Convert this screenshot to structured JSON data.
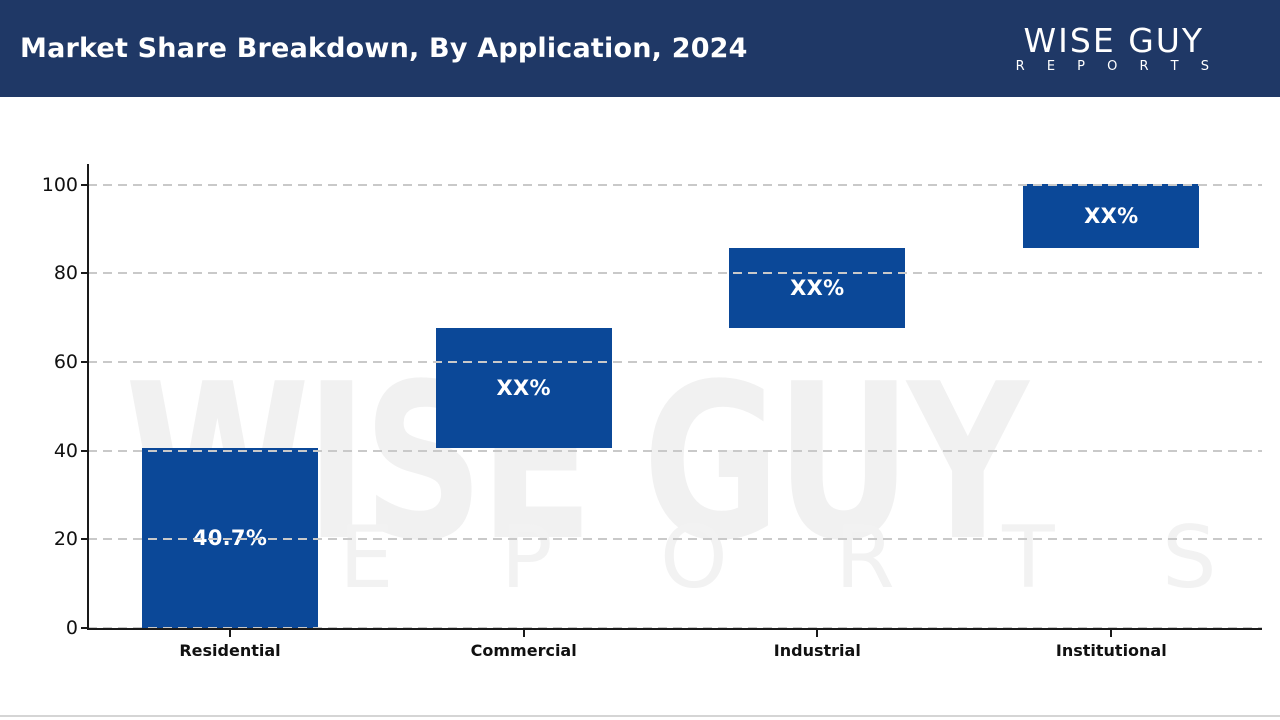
{
  "header": {
    "title": "Market Share Breakdown, By Application, 2024",
    "background_color": "#1f3866",
    "brand": {
      "line1": "WISE GUY",
      "line2": "R E P O R T S"
    }
  },
  "watermark": {
    "line1": "WISE GUY",
    "line2": "R E P O R T S"
  },
  "chart_data": {
    "type": "bar",
    "subtype": "waterfall",
    "title": "Market Share Breakdown, By Application, 2024",
    "categories": [
      "Residential",
      "Commercial",
      "Industrial",
      "Institutional"
    ],
    "segments": [
      {
        "category": "Residential",
        "start": 0,
        "end": 40.7,
        "value_label": "40.7%"
      },
      {
        "category": "Commercial",
        "start": 40.7,
        "end": 67.6,
        "value_label": "XX%"
      },
      {
        "category": "Industrial",
        "start": 67.6,
        "end": 85.8,
        "value_label": "XX%"
      },
      {
        "category": "Institutional",
        "start": 85.8,
        "end": 100.1,
        "value_label": "XX%"
      }
    ],
    "yticks": [
      0,
      20,
      40,
      60,
      80,
      100
    ],
    "ylim": [
      0,
      104
    ],
    "xlabel": "",
    "ylabel": "",
    "bar_color": "#0b4898",
    "grid": "dashed horizontal gridlines drawn over bars",
    "legend": "none"
  }
}
